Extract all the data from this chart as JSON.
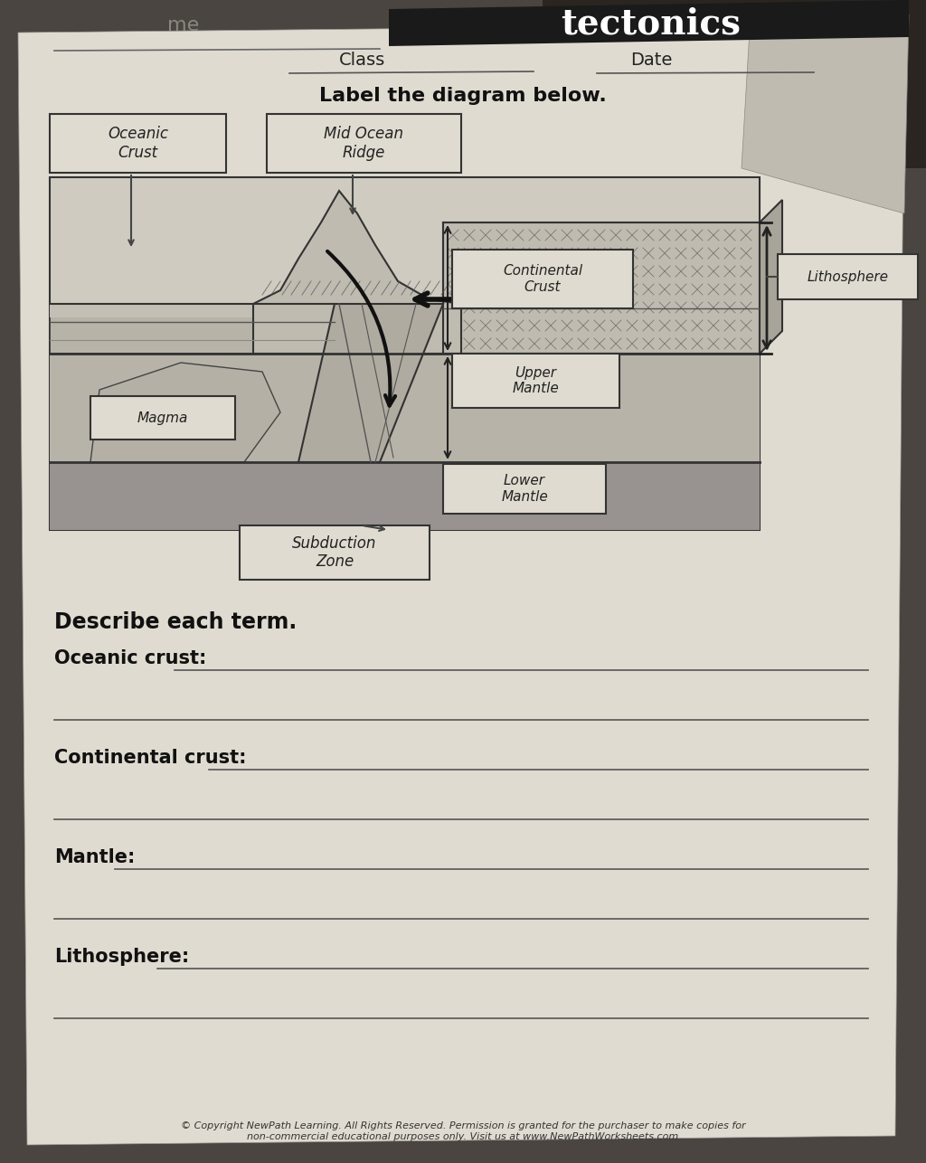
{
  "bg_color_top": "#3a3530",
  "bg_color_bottom": "#6a6055",
  "paper_color": "#e8e3d8",
  "paper_shadow": "#c8c0b0",
  "header_bg": "#1a1a1a",
  "header_text": "tectonics",
  "header_text_color": "#ffffff",
  "title_partial": "me",
  "class_label": "Class",
  "date_label": "Date",
  "diagram_title": "Label the diagram below.",
  "line_color": "#555550",
  "box_fill": "#e0dbd0",
  "diagram_bg": "#d8d3c8",
  "diagram_border": "#444444",
  "oceanic_crust_label": "Oceanic\nCrust",
  "mid_ocean_ridge_label": "Mid Ocean\nRidge",
  "continental_crust_label": "Continental\nCrust",
  "lithosphere_label": "Lithosphere",
  "upper_mantle_label": "Upper\nMantle",
  "lower_mantle_label": "Lower\nMantle",
  "magma_label": "Magma",
  "subduction_zone_label": "Subduction\nZone",
  "describe_title": "Describe each term.",
  "terms": [
    "Oceanic crust:",
    "Continental crust:",
    "Mantle:",
    "Lithosphere:"
  ],
  "copyright": "© Copyright NewPath Learning. All Rights Reserved. Permission is granted for the purchaser to make copies for\nnon-commercial educational purposes only. Visit us at www.NewPathWorksheets.com",
  "upper_mantle_color": "#c8c3b8",
  "lower_mantle_color": "#a8a39a",
  "continental_color": "#c0bbb0",
  "oceanic_color": "#b8b3a8",
  "ridge_color": "#c4bfb4"
}
